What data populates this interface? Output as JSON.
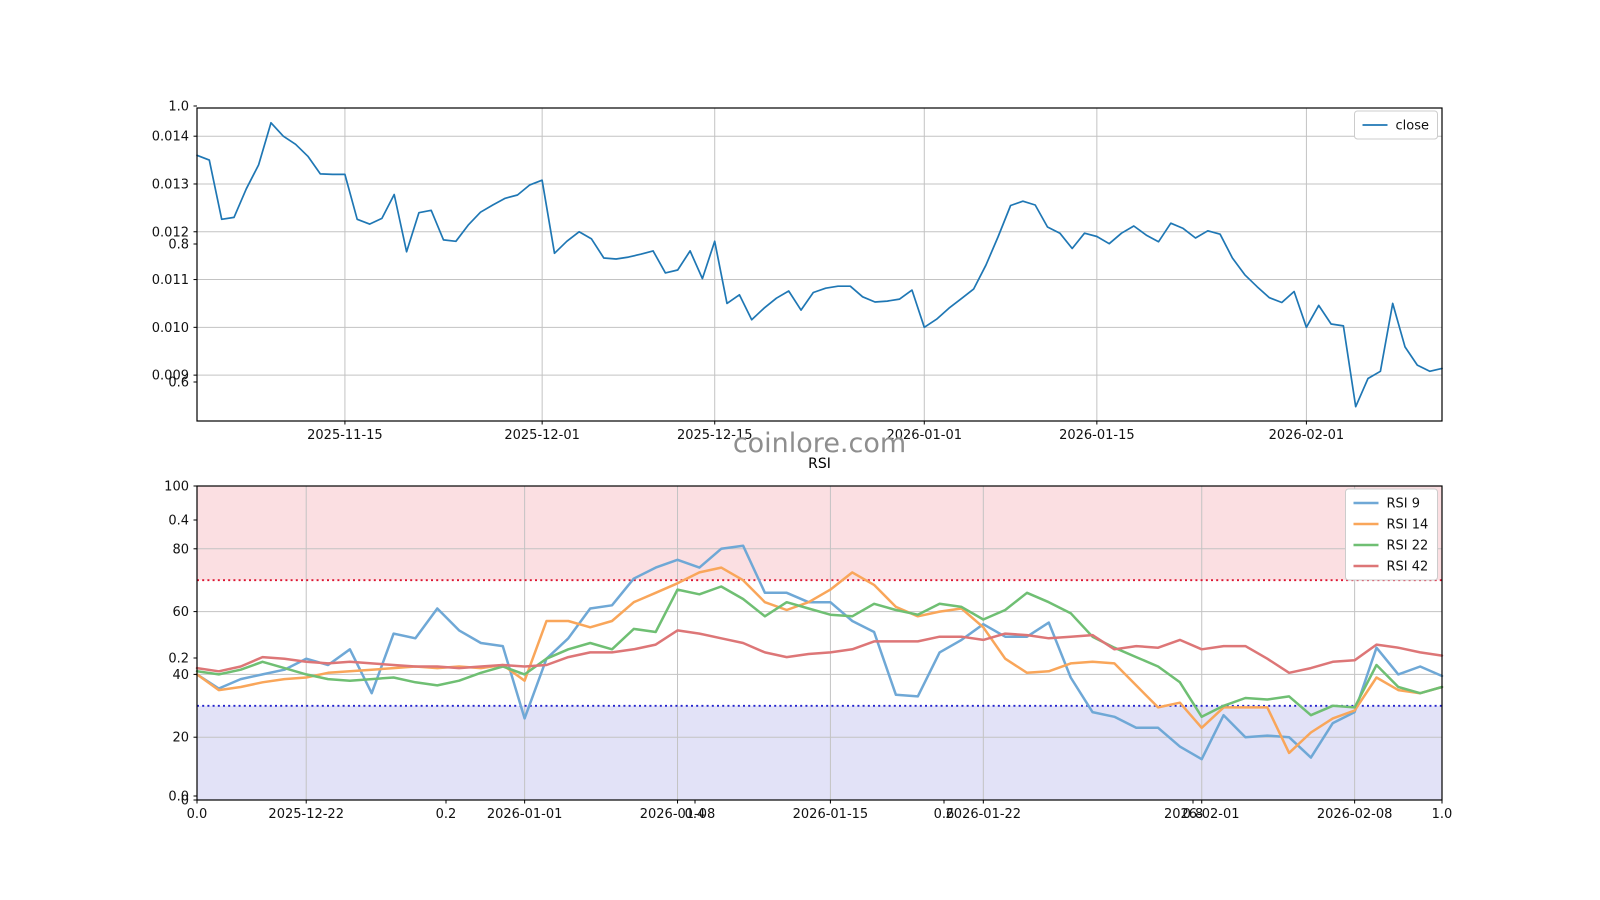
{
  "watermark": {
    "text": "coinlore.com"
  },
  "hidden_axis": {
    "y_ticks": [
      "1.0",
      "0.8",
      "0.6",
      "0.4",
      "0.2",
      "0.0"
    ],
    "x_ticks": [
      "0.0",
      "0.2",
      "0.4",
      "0.6",
      "0.8",
      "1.0"
    ]
  },
  "chart_data": [
    {
      "type": "line",
      "title": "",
      "ylabel": "",
      "xlabel": "",
      "grid": true,
      "legend_position": "upper right",
      "legend": [
        "close"
      ],
      "ylim": [
        0.00804,
        0.01459
      ],
      "y_ticks": [
        {
          "label": "0.014",
          "value": 0.014
        },
        {
          "label": "0.013",
          "value": 0.013
        },
        {
          "label": "0.012",
          "value": 0.012
        },
        {
          "label": "0.011",
          "value": 0.011
        },
        {
          "label": "0.010",
          "value": 0.01
        },
        {
          "label": "0.009",
          "value": 0.009
        }
      ],
      "x_ticks": [
        {
          "label": "2025-11-15",
          "date": "2025-11-15"
        },
        {
          "label": "2025-12-01",
          "date": "2025-12-01"
        },
        {
          "label": "2025-12-15",
          "date": "2025-12-15"
        },
        {
          "label": "2026-01-01",
          "date": "2026-01-01"
        },
        {
          "label": "2026-01-15",
          "date": "2026-01-15"
        },
        {
          "label": "2026-02-01",
          "date": "2026-02-01"
        }
      ],
      "start_date": "2025-11-03",
      "end_date": "2026-02-12",
      "frequency": "daily",
      "series": [
        {
          "name": "close",
          "color": "#1f77b4",
          "values": [
            0.0136,
            0.0135,
            0.01226,
            0.0123,
            0.0129,
            0.0134,
            0.01428,
            0.014,
            0.01383,
            0.01358,
            0.01321,
            0.0132,
            0.0132,
            0.01226,
            0.01216,
            0.01228,
            0.01278,
            0.01158,
            0.0124,
            0.01245,
            0.01183,
            0.0118,
            0.01214,
            0.01241,
            0.01256,
            0.0127,
            0.01277,
            0.01298,
            0.01308,
            0.01155,
            0.0118,
            0.012,
            0.01185,
            0.01145,
            0.01143,
            0.01147,
            0.01153,
            0.0116,
            0.01114,
            0.0112,
            0.0116,
            0.01102,
            0.0118,
            0.0105,
            0.01068,
            0.01016,
            0.0104,
            0.01061,
            0.01076,
            0.01036,
            0.01073,
            0.01082,
            0.01086,
            0.01086,
            0.01064,
            0.01053,
            0.01055,
            0.01059,
            0.01078,
            0.01,
            0.01017,
            0.0104,
            0.0106,
            0.0108,
            0.0113,
            0.0119,
            0.01255,
            0.01264,
            0.01256,
            0.0121,
            0.01197,
            0.01165,
            0.01197,
            0.0119,
            0.01175,
            0.01197,
            0.01212,
            0.01193,
            0.01179,
            0.01218,
            0.01207,
            0.01187,
            0.01202,
            0.01195,
            0.01145,
            0.0111,
            0.01085,
            0.01062,
            0.01052,
            0.01075,
            0.01,
            0.01046,
            0.01007,
            0.01003,
            0.00834,
            0.00893,
            0.00908,
            0.0105,
            0.00959,
            0.00921,
            0.00908,
            0.00914
          ]
        }
      ]
    },
    {
      "type": "line",
      "title": "RSI",
      "ylabel": "",
      "xlabel": "",
      "grid": true,
      "legend_position": "upper right",
      "legend": [
        "RSI 9",
        "RSI 14",
        "RSI 22",
        "RSI 42"
      ],
      "ylim": [
        0,
        100
      ],
      "overbought_level": 70,
      "oversold_level": 30,
      "overbought_band_color": "#fbdfe2",
      "oversold_band_color": "#e2e2f7",
      "overbought_line_color": "#dc1430",
      "oversold_line_color": "#2222cc",
      "y_ticks": [
        {
          "label": "100",
          "value": 100
        },
        {
          "label": "80",
          "value": 80
        },
        {
          "label": "60",
          "value": 60
        },
        {
          "label": "40",
          "value": 40
        },
        {
          "label": "20",
          "value": 20
        },
        {
          "label": "0",
          "value": 0
        }
      ],
      "x_ticks": [
        {
          "label": "2025-12-22",
          "date": "2025-12-22"
        },
        {
          "label": "2026-01-01",
          "date": "2026-01-01"
        },
        {
          "label": "2026-01-08",
          "date": "2026-01-08"
        },
        {
          "label": "2026-01-15",
          "date": "2026-01-15"
        },
        {
          "label": "2026-01-22",
          "date": "2026-01-22"
        },
        {
          "label": "2026-02-01",
          "date": "2026-02-01"
        },
        {
          "label": "2026-02-08",
          "date": "2026-02-08"
        }
      ],
      "start_date": "2025-12-17",
      "end_date": "2026-02-12",
      "frequency": "daily",
      "series": [
        {
          "name": "RSI 9",
          "color": "#6fa8d6",
          "values": [
            40,
            35.5,
            38.5,
            40,
            41.5,
            45,
            43,
            48,
            34,
            53,
            51.5,
            61,
            54,
            50,
            49,
            26,
            45,
            51.5,
            61,
            62,
            70.5,
            74,
            76.5,
            74,
            80,
            81,
            66,
            66,
            63,
            63,
            57,
            53.5,
            33.5,
            33,
            47,
            51,
            56,
            52,
            52,
            56.5,
            39,
            28,
            26.5,
            23,
            23,
            17,
            13,
            27,
            20,
            20.5,
            20,
            13.5,
            24.5,
            28,
            48.5,
            40,
            42.5,
            39.5
          ]
        },
        {
          "name": "RSI 14",
          "color": "#f9a65a",
          "values": [
            40,
            35,
            36,
            37.5,
            38.5,
            39,
            40.5,
            41,
            41.5,
            42,
            42.5,
            42,
            42.5,
            42,
            43,
            38,
            57,
            57,
            55,
            57,
            63,
            66,
            69,
            72.5,
            74,
            70,
            63,
            60.5,
            63,
            67,
            72.5,
            68.5,
            61.5,
            58.5,
            60,
            61,
            55,
            45,
            40.5,
            41,
            43.5,
            44,
            43.5,
            36.5,
            29.5,
            31,
            23,
            29.5,
            29.5,
            29.5,
            15,
            21.5,
            26,
            28.5,
            39,
            35,
            34,
            36
          ]
        },
        {
          "name": "RSI 22",
          "color": "#6fbf73",
          "values": [
            41,
            40,
            41.5,
            44,
            42,
            40,
            38.5,
            38,
            38.5,
            39,
            37.5,
            36.5,
            38,
            40.5,
            42.5,
            40,
            45,
            48,
            50,
            48,
            54.5,
            53.5,
            67,
            65.5,
            68,
            64,
            58.5,
            63,
            61,
            59,
            58.5,
            62.5,
            60.5,
            59,
            62.5,
            61.5,
            57.5,
            60.5,
            66,
            63,
            59.5,
            52,
            48.5,
            45.5,
            42.5,
            37.5,
            26.5,
            30,
            32.5,
            32,
            33,
            27,
            30,
            29.5,
            43,
            36,
            34,
            36
          ]
        },
        {
          "name": "RSI 42",
          "color": "#dd7677",
          "values": [
            42,
            41,
            42.5,
            45.5,
            45,
            44,
            43.5,
            44,
            43.5,
            43,
            42.5,
            42.5,
            42,
            42.5,
            43,
            42.5,
            43,
            45.5,
            47,
            47,
            48,
            49.5,
            54,
            53,
            51.5,
            50,
            47,
            45.5,
            46.5,
            47,
            48,
            50.5,
            50.5,
            50.5,
            52,
            52,
            51,
            53,
            52.5,
            51.5,
            52,
            52.5,
            48,
            49,
            48.5,
            51,
            48,
            49,
            49,
            45,
            40.5,
            42,
            44,
            44.5,
            49.5,
            48.5,
            47,
            46
          ]
        }
      ]
    }
  ]
}
